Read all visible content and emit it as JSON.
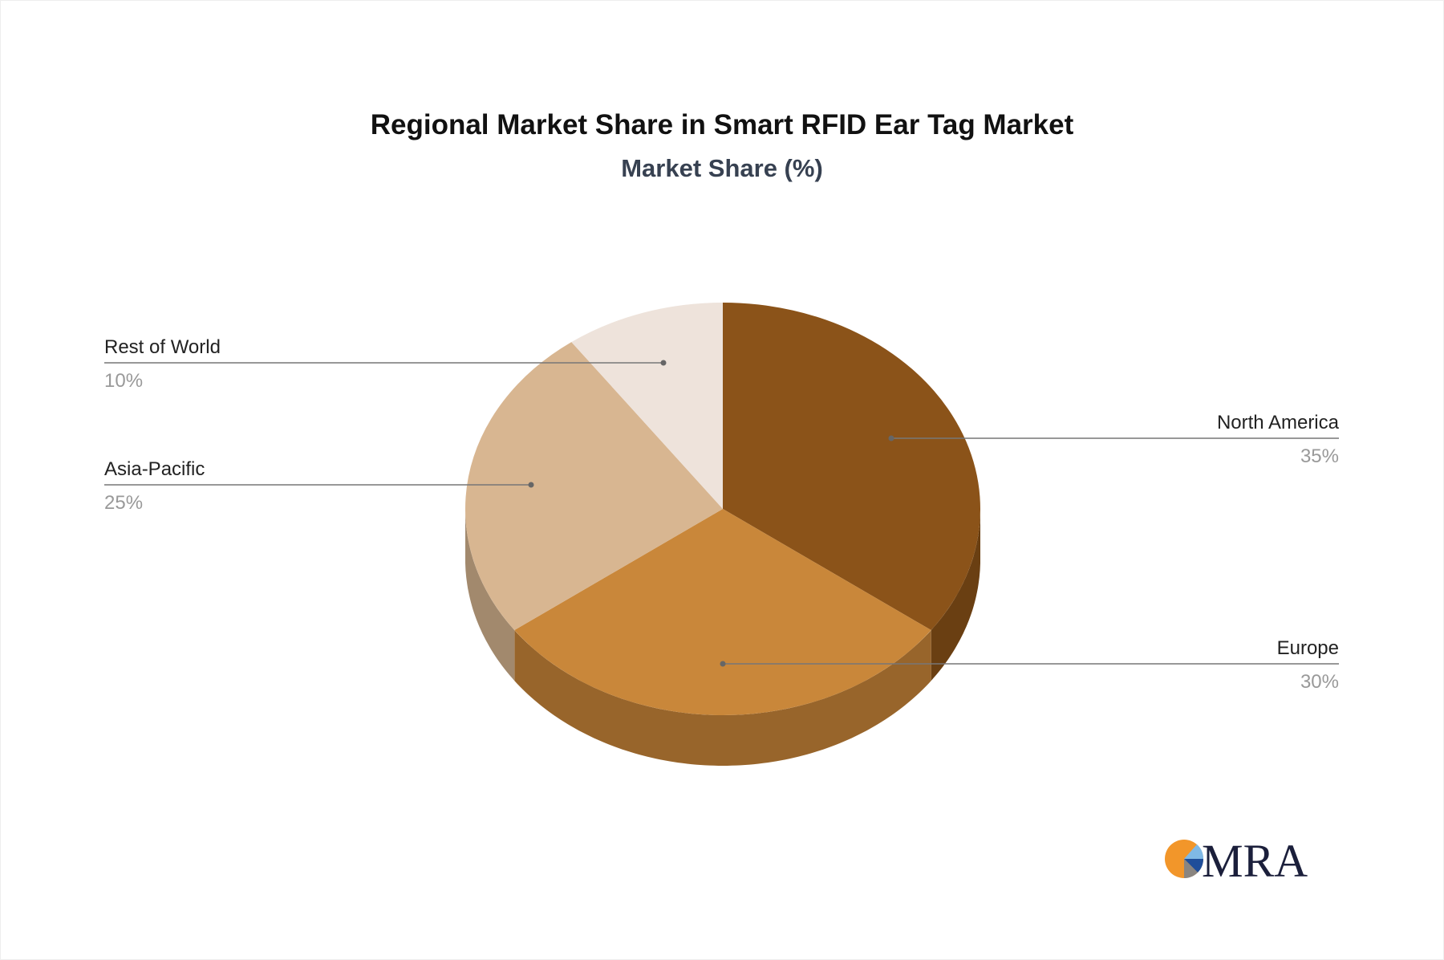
{
  "chart_data": {
    "type": "pie",
    "title": "Regional Market Share in Smart RFID Ear Tag Market",
    "subtitle": "Market Share (%)",
    "style": "3d",
    "slices": [
      {
        "label": "North America",
        "value": 35,
        "pct_label": "35%",
        "color": "#8B5319",
        "side_color": "#6A3F12"
      },
      {
        "label": "Europe",
        "value": 30,
        "pct_label": "30%",
        "color": "#C9873A",
        "side_color": "#98652B"
      },
      {
        "label": "Asia-Pacific",
        "value": 25,
        "pct_label": "25%",
        "color": "#D8B691",
        "side_color": "#A2896D"
      },
      {
        "label": "Rest of World",
        "value": 10,
        "pct_label": "10%",
        "color": "#EEE3DB",
        "side_color": "#B3AAA4"
      }
    ]
  },
  "logo": {
    "text": "MRA",
    "color": "#1B1F3B",
    "accent": "#F2962A"
  }
}
